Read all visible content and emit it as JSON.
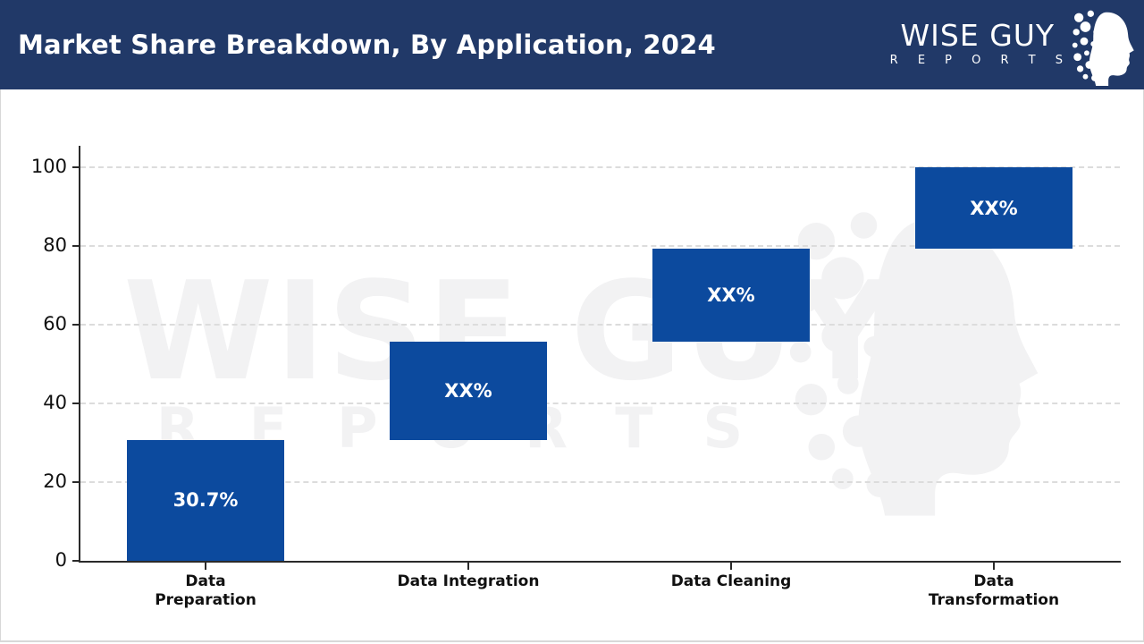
{
  "header": {
    "title": "Market Share Breakdown, By Application, 2024",
    "bg_color": "#213968",
    "logo": {
      "line1": "WISE GUY",
      "line2": "R E P O R T S"
    }
  },
  "watermark": {
    "line1": "WISE GUY",
    "line2": "REPORTS"
  },
  "chart_data": {
    "type": "bar",
    "subtype": "waterfall",
    "title": "Market Share Breakdown, By Application, 2024",
    "xlabel": "",
    "ylabel": "",
    "categories": [
      "Data Preparation",
      "Data Integration",
      "Data Cleaning",
      "Data Transformation"
    ],
    "segments": [
      {
        "category": "Data Preparation",
        "start": 0,
        "end": 30.7,
        "label": "30.7%"
      },
      {
        "category": "Data Integration",
        "start": 30.7,
        "end": 55.6,
        "label": "XX%"
      },
      {
        "category": "Data Cleaning",
        "start": 55.6,
        "end": 79.3,
        "label": "XX%"
      },
      {
        "category": "Data Transformation",
        "start": 79.3,
        "end": 100,
        "label": "XX%"
      }
    ],
    "y_ticks": [
      0,
      20,
      40,
      60,
      80,
      100
    ],
    "ylim": [
      0,
      105.5
    ],
    "grid": "horizontal-dashed",
    "legend": "none",
    "bar_color": "#0c4a9e",
    "bar_label_color": "#ffffff",
    "axis_color": "#2a2a2a",
    "grid_color": "#dcdcdc"
  }
}
